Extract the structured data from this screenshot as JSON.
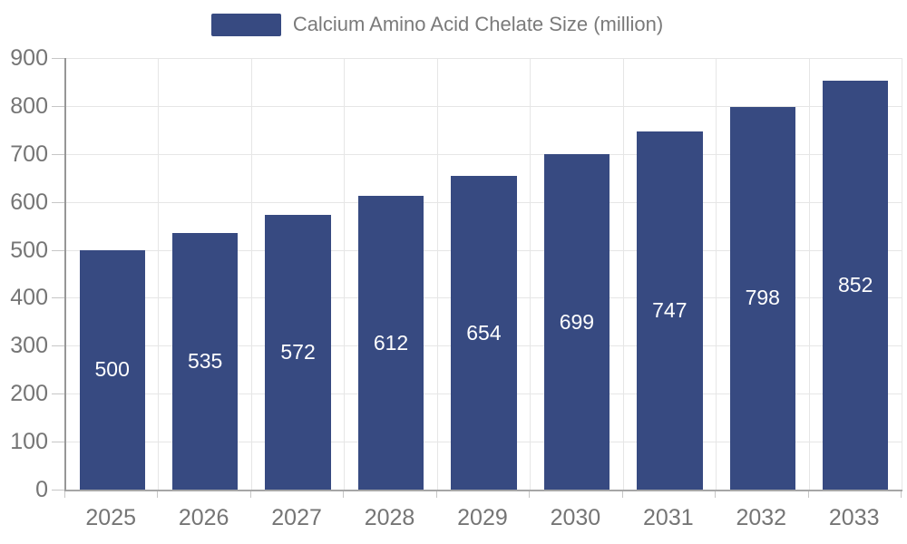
{
  "colors": {
    "bar": "#374a81",
    "bar_label": "#ffffff",
    "axis_text": "#757575",
    "legend_text": "#7a7a7a",
    "grid": "#e6e6e6",
    "y_axis_line": "#979797",
    "x_axis_line": "#a6a6a6",
    "tick": "#c6c6c6",
    "background": "#ffffff"
  },
  "legend": {
    "label": "Calcium Amino Acid Chelate Size (million)"
  },
  "chart_data": {
    "type": "bar",
    "title": "Calcium Amino Acid Chelate Size (million)",
    "series_name": "Calcium Amino Acid Chelate Size (million)",
    "categories": [
      "2025",
      "2026",
      "2027",
      "2028",
      "2029",
      "2030",
      "2031",
      "2032",
      "2033"
    ],
    "values": [
      500,
      535,
      572,
      612,
      654,
      699,
      747,
      798,
      852
    ],
    "bar_value_labels": [
      "500",
      "535",
      "572",
      "612",
      "654",
      "699",
      "747",
      "798",
      "852"
    ],
    "xlabel": "",
    "ylabel": "",
    "ylim": [
      0,
      900
    ],
    "ytick_step": 100,
    "yticks": [
      0,
      100,
      200,
      300,
      400,
      500,
      600,
      700,
      800,
      900
    ],
    "grid": "on",
    "legend_position": "top-center",
    "value_labels_inside_bars": true
  }
}
